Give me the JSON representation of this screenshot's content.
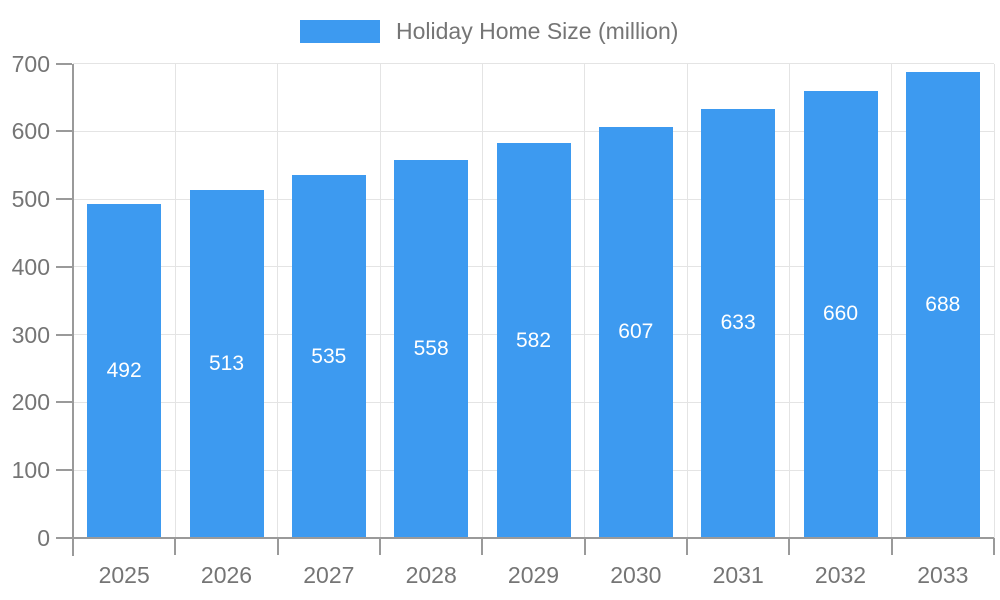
{
  "legend": {
    "label": "Holiday Home Size (million)",
    "swatch_color": "#3d9af0"
  },
  "colors": {
    "bar": "#3d9af0",
    "axis": "#9a9a9a",
    "grid": "#e4e4e4",
    "text": "#757575",
    "value_label": "#ffffff",
    "background": "#ffffff"
  },
  "chart_data": {
    "type": "bar",
    "title": "",
    "xlabel": "",
    "ylabel": "",
    "series_name": "Holiday Home Size (million)",
    "categories": [
      "2025",
      "2026",
      "2027",
      "2028",
      "2029",
      "2030",
      "2031",
      "2032",
      "2033"
    ],
    "series": [
      {
        "name": "Holiday Home Size (million)",
        "values": [
          492,
          513,
          535,
          558,
          582,
          607,
          633,
          660,
          688
        ]
      }
    ],
    "value_labels_shown": [
      492,
      513,
      535,
      558,
      582,
      607,
      633,
      660,
      688
    ],
    "value_label_position": "inside-center",
    "ylim": [
      0,
      700
    ],
    "yticks": [
      0,
      100,
      200,
      300,
      400,
      500,
      600,
      700
    ],
    "grid": true,
    "legend_position": "top-center"
  }
}
